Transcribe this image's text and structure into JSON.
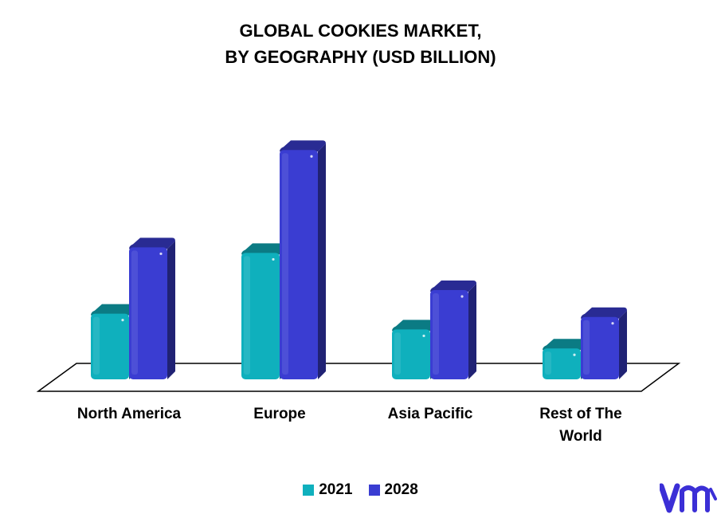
{
  "chart_data": {
    "type": "bar",
    "title_lines": [
      "GLOBAL COOKIES MARKET,",
      "BY GEOGRAPHY (USD BILLION)"
    ],
    "categories": [
      [
        "North America"
      ],
      [
        "Europe"
      ],
      [
        "Asia Pacific"
      ],
      [
        "Rest of The",
        "World"
      ]
    ],
    "series": [
      {
        "name": "2021",
        "values": [
          14.5,
          27.6,
          11.1,
          7.0
        ],
        "color": "#0fb0bd"
      },
      {
        "name": "2028",
        "values": [
          28.8,
          49.8,
          19.6,
          13.8
        ],
        "color": "#3a3dd2"
      }
    ],
    "ylim": [
      0,
      55
    ],
    "grid": false,
    "legend_position": "bottom",
    "style": "3d"
  },
  "logo": {
    "text": "vmr",
    "color": "#3b2fd6",
    "icon": "vmr-logo"
  }
}
